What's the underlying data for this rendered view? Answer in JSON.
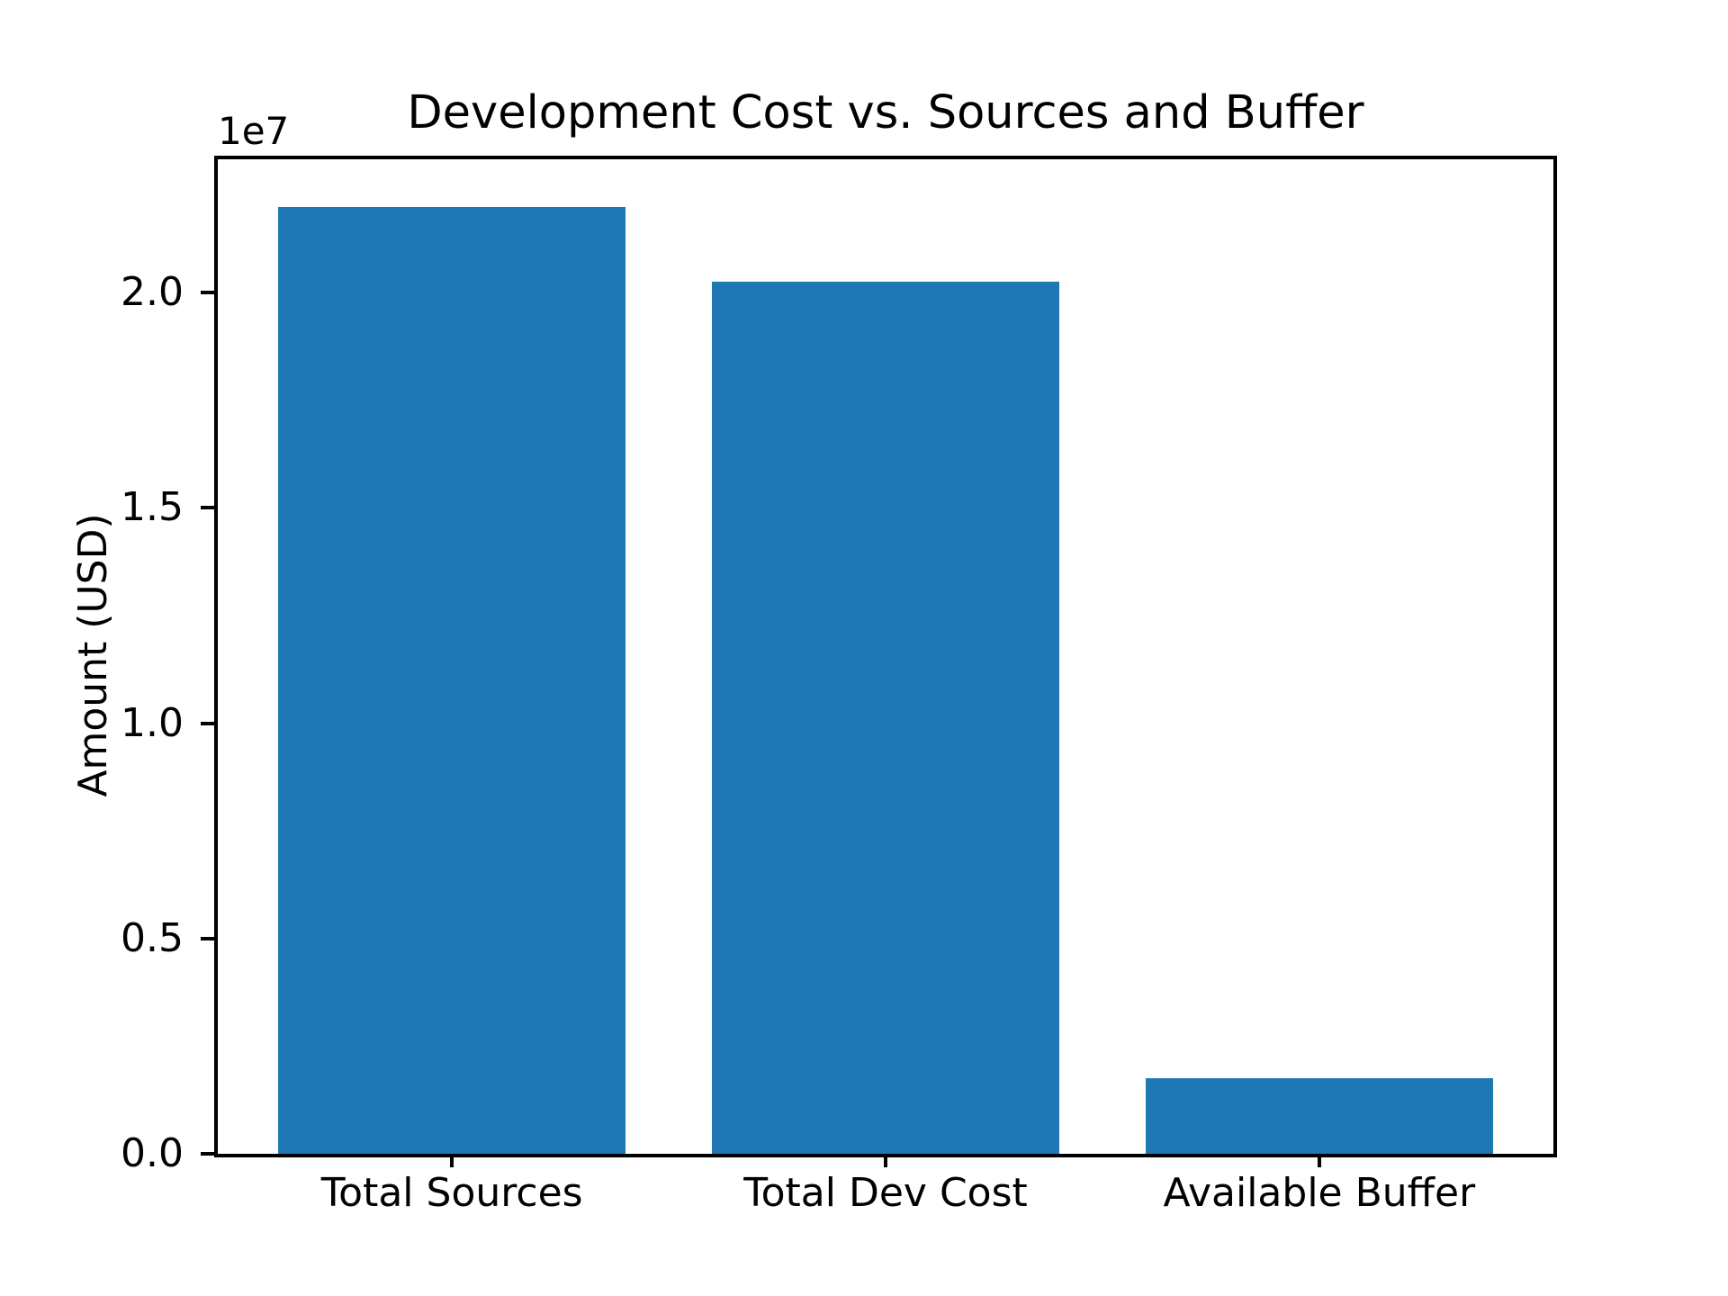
{
  "chart_data": {
    "type": "bar",
    "title": "Development Cost vs. Sources and Buffer",
    "xlabel": "",
    "ylabel": "Amount (USD)",
    "y_offset_label": "1e7",
    "categories": [
      "Total Sources",
      "Total Dev Cost",
      "Available Buffer"
    ],
    "values": [
      22000000,
      20250000,
      1750000
    ],
    "ylim": [
      0,
      23100000
    ],
    "xlim": [
      -0.54,
      2.54
    ],
    "bar_width": 0.8,
    "yticks": [
      0,
      5000000,
      10000000,
      15000000,
      20000000
    ],
    "ytick_labels": [
      "0.0",
      "0.5",
      "1.0",
      "1.5",
      "2.0"
    ],
    "bar_color": "#1f77b4",
    "background_color": "#ffffff",
    "text_color": "#000000",
    "grid": false,
    "legend": null
  }
}
